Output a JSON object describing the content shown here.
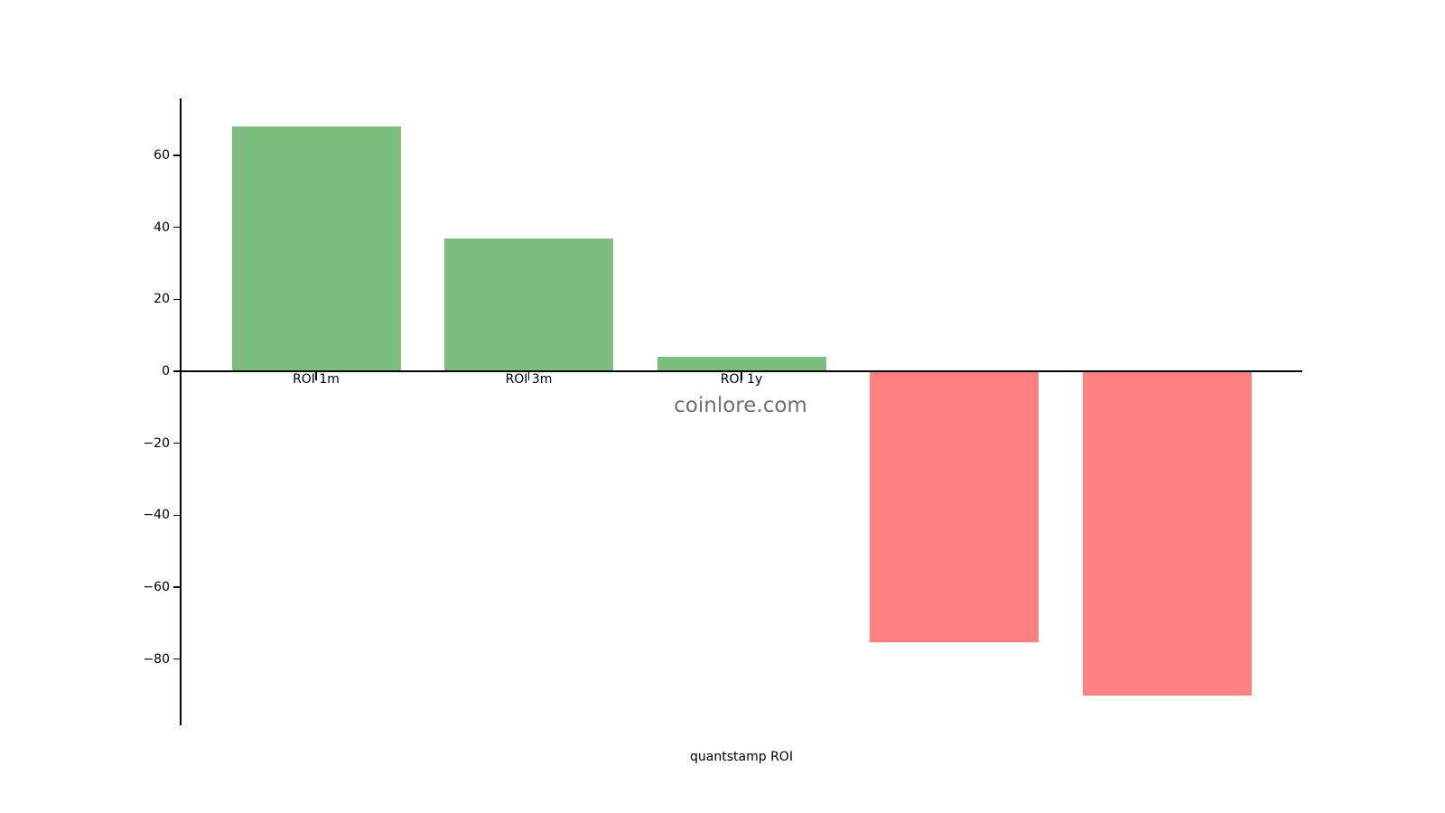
{
  "page": {
    "background": "#ffffff"
  },
  "watermark": {
    "text": "coinlore.com",
    "color": "#6e6e6e"
  },
  "chart_data": {
    "type": "bar",
    "title": "quantstamp ROI",
    "title_position": "bottom",
    "categories": [
      "ROI 1m",
      "ROI 3m",
      "ROI 1y",
      "",
      ""
    ],
    "values": [
      68,
      37,
      4,
      -75,
      -90
    ],
    "bar_colors": {
      "positive": "#7bbe7e",
      "negative": "#ff8080"
    },
    "ytick_labels": [
      "60",
      "40",
      "20",
      "0",
      "−20",
      "−40",
      "−60",
      "−80"
    ],
    "ytick_values": [
      60,
      40,
      20,
      0,
      -20,
      -40,
      -60,
      -80
    ],
    "ylim": [
      -98.4,
      75.8
    ],
    "xlabel": "",
    "ylabel": "",
    "grid": false,
    "legend": null,
    "axis_color": "#000000"
  }
}
